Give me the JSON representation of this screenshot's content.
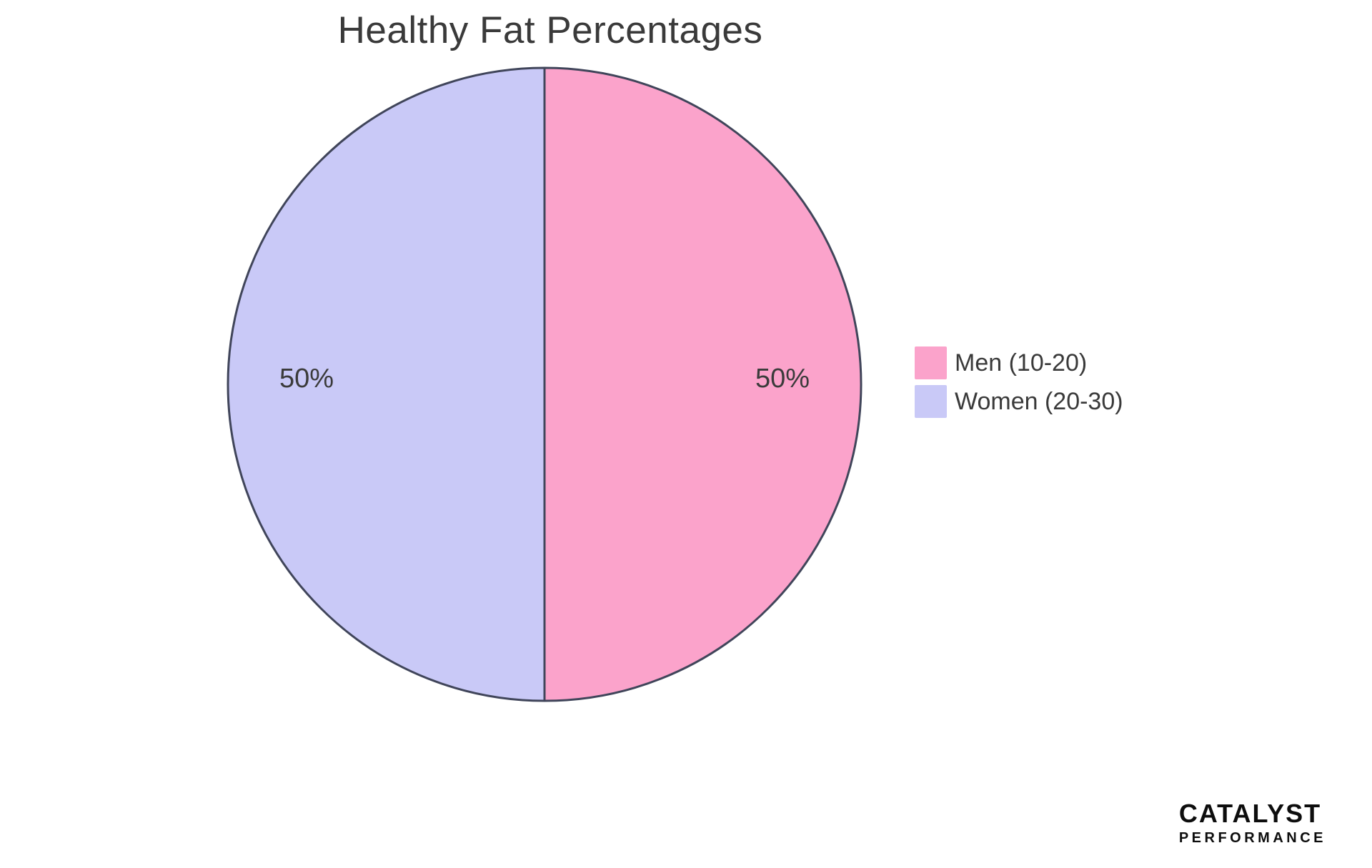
{
  "title": {
    "text": "Healthy Fat Percentages",
    "color": "#3A3A3A"
  },
  "chart_data": {
    "type": "pie",
    "title": "Healthy Fat Percentages",
    "slices": [
      {
        "label": "Men (10-20)",
        "value": 50,
        "display": "50%",
        "color": "#FBA3CB"
      },
      {
        "label": "Women (20-30)",
        "value": 50,
        "display": "50%",
        "color": "#C9C9F7"
      }
    ],
    "stroke_color": "#40455A",
    "label_color": "#3B3B3B",
    "legend_position": "right",
    "start_angle_deg": 0,
    "direction": "clockwise",
    "labels_inside": true
  },
  "legend": {
    "text_color": "#3A3A3A"
  },
  "branding": {
    "line1": "CATALYST",
    "line2": "PERFORMANCE",
    "color": "#0D0D0D"
  }
}
